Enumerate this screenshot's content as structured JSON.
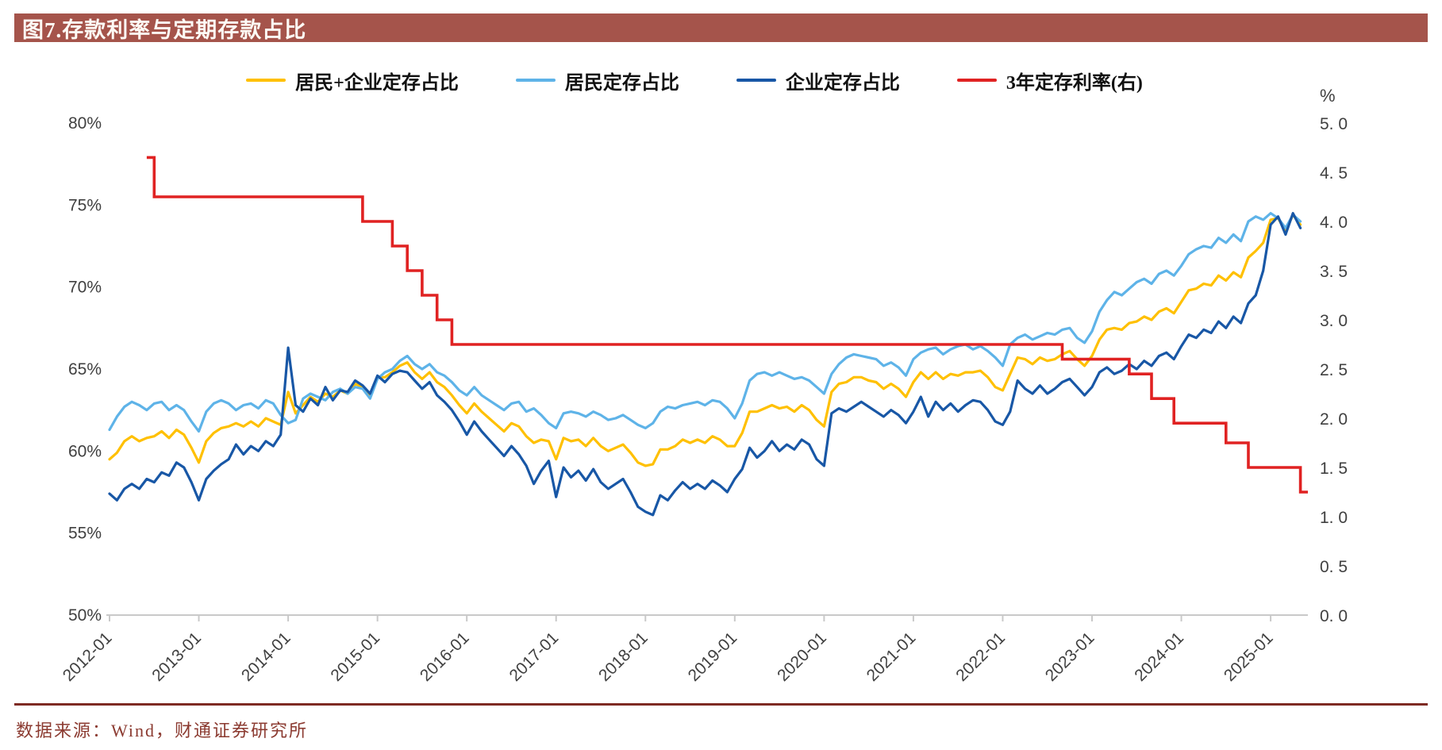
{
  "header": {
    "title": "图7.存款利率与定期存款占比"
  },
  "footer": {
    "source": "数据来源：Wind，财通证券研究所"
  },
  "colors": {
    "title_bar_bg": "#A5544B",
    "title_text": "#FDFAF5",
    "footer_text": "#8B3A30",
    "divider": "#7E2B23",
    "axis_line": "#C9C9C9",
    "axis_text": "#404040",
    "series_total": "#FFC000",
    "series_household": "#5EB3E8",
    "series_corporate": "#1857A6",
    "series_rate": "#E02222"
  },
  "legend": [
    {
      "label": "居民+企业定存占比",
      "color": "#FFC000"
    },
    {
      "label": "居民定存占比",
      "color": "#5EB3E8"
    },
    {
      "label": "企业定存占比",
      "color": "#1857A6"
    },
    {
      "label": "3年定存利率(右)",
      "color": "#E02222"
    }
  ],
  "chart_data": {
    "type": "line",
    "title": "存款利率与定期存款占比",
    "x_unit": "month",
    "x_start": "2012-01",
    "x_end": "2025-05",
    "months_total": 161,
    "x_tick_labels": [
      "2012-01",
      "2013-01",
      "2014-01",
      "2015-01",
      "2016-01",
      "2017-01",
      "2018-01",
      "2019-01",
      "2020-01",
      "2021-01",
      "2022-01",
      "2023-01",
      "2024-01",
      "2025-01"
    ],
    "x_tick_month_index": [
      0,
      12,
      24,
      36,
      48,
      60,
      72,
      84,
      96,
      108,
      120,
      132,
      144,
      156
    ],
    "left_axis": {
      "range": [
        50,
        80
      ],
      "tick_labels": [
        "80%",
        "75%",
        "70%",
        "65%",
        "60%",
        "55%",
        "50%"
      ]
    },
    "right_axis": {
      "unit": "%",
      "range": [
        0,
        5
      ],
      "tick_labels": [
        "5. 0",
        "4. 5",
        "4. 0",
        "3. 5",
        "3. 0",
        "2. 5",
        "2. 0",
        "1. 5",
        "1. 0",
        "0. 5",
        "0. 0"
      ]
    },
    "grid": false,
    "legend_position": "top",
    "series": [
      {
        "name": "居民+企业定存占比",
        "axis": "left",
        "color": "#FFC000",
        "values": [
          59.5,
          59.9,
          60.6,
          60.9,
          60.6,
          60.8,
          60.9,
          61.2,
          60.8,
          61.3,
          61.0,
          60.2,
          59.3,
          60.6,
          61.1,
          61.4,
          61.5,
          61.7,
          61.5,
          61.8,
          61.5,
          62.0,
          61.8,
          61.6,
          63.6,
          62.3,
          62.8,
          63.3,
          63.0,
          63.5,
          63.3,
          63.7,
          63.5,
          64.1,
          63.9,
          63.3,
          64.5,
          64.5,
          64.8,
          65.2,
          65.4,
          64.8,
          64.4,
          64.8,
          64.2,
          63.9,
          63.4,
          62.8,
          62.3,
          62.9,
          62.4,
          62.0,
          61.6,
          61.2,
          61.7,
          61.5,
          60.9,
          60.5,
          60.7,
          60.6,
          59.5,
          60.8,
          60.6,
          60.7,
          60.3,
          60.8,
          60.3,
          60.0,
          60.2,
          60.4,
          59.9,
          59.3,
          59.1,
          59.2,
          60.1,
          60.1,
          60.3,
          60.7,
          60.5,
          60.7,
          60.5,
          60.9,
          60.7,
          60.3,
          60.3,
          61.1,
          62.4,
          62.4,
          62.6,
          62.8,
          62.6,
          62.7,
          62.4,
          62.8,
          62.5,
          61.9,
          61.5,
          63.6,
          64.1,
          64.2,
          64.5,
          64.5,
          64.3,
          64.2,
          63.8,
          64.1,
          63.8,
          63.3,
          64.2,
          64.8,
          64.4,
          64.8,
          64.4,
          64.7,
          64.6,
          64.8,
          64.8,
          64.9,
          64.5,
          63.9,
          63.7,
          64.7,
          65.7,
          65.6,
          65.3,
          65.7,
          65.5,
          65.6,
          65.9,
          66.1,
          65.6,
          65.2,
          65.8,
          66.8,
          67.4,
          67.5,
          67.4,
          67.8,
          67.9,
          68.2,
          68.0,
          68.5,
          68.7,
          68.4,
          69.1,
          69.8,
          69.9,
          70.2,
          70.1,
          70.7,
          70.4,
          70.9,
          70.6,
          71.8,
          72.2,
          72.7,
          74.1,
          74.2,
          73.4,
          74.4,
          73.8
        ]
      },
      {
        "name": "居民定存占比",
        "axis": "left",
        "color": "#5EB3E8",
        "values": [
          61.3,
          62.1,
          62.7,
          63.0,
          62.8,
          62.5,
          62.9,
          63.0,
          62.5,
          62.8,
          62.5,
          61.8,
          61.2,
          62.4,
          62.9,
          63.1,
          62.9,
          62.5,
          62.8,
          62.9,
          62.6,
          63.1,
          62.9,
          62.2,
          61.7,
          61.9,
          63.2,
          63.5,
          63.3,
          63.1,
          63.6,
          63.8,
          63.5,
          63.9,
          63.8,
          63.2,
          64.4,
          64.8,
          65.0,
          65.5,
          65.8,
          65.3,
          65.0,
          65.3,
          64.8,
          64.6,
          64.2,
          63.7,
          63.4,
          63.9,
          63.4,
          63.1,
          62.8,
          62.5,
          62.9,
          63.0,
          62.4,
          62.6,
          62.2,
          61.7,
          61.4,
          62.3,
          62.4,
          62.3,
          62.1,
          62.4,
          62.2,
          61.9,
          62.0,
          62.2,
          61.9,
          61.6,
          61.4,
          61.7,
          62.4,
          62.7,
          62.6,
          62.8,
          62.9,
          63.0,
          62.8,
          63.1,
          63.0,
          62.6,
          62.0,
          62.9,
          64.3,
          64.7,
          64.8,
          64.6,
          64.8,
          64.6,
          64.4,
          64.5,
          64.3,
          63.9,
          63.5,
          64.7,
          65.3,
          65.7,
          65.9,
          65.8,
          65.7,
          65.6,
          65.2,
          65.4,
          65.1,
          64.6,
          65.6,
          66.0,
          66.2,
          66.3,
          65.9,
          66.2,
          66.4,
          66.5,
          66.2,
          66.4,
          66.1,
          65.7,
          65.2,
          66.5,
          66.9,
          67.1,
          66.8,
          67.0,
          67.2,
          67.1,
          67.4,
          67.5,
          66.9,
          66.6,
          67.3,
          68.5,
          69.2,
          69.7,
          69.5,
          69.9,
          70.3,
          70.5,
          70.2,
          70.8,
          71.0,
          70.7,
          71.3,
          72.0,
          72.3,
          72.5,
          72.4,
          73.0,
          72.7,
          73.2,
          72.8,
          74.0,
          74.3,
          74.1,
          74.5,
          74.2,
          73.6,
          74.4,
          74.0
        ]
      },
      {
        "name": "企业定存占比",
        "axis": "left",
        "color": "#1857A6",
        "values": [
          57.4,
          57.0,
          57.7,
          58.0,
          57.7,
          58.3,
          58.1,
          58.7,
          58.5,
          59.3,
          59.0,
          58.1,
          57.0,
          58.3,
          58.8,
          59.2,
          59.5,
          60.4,
          59.8,
          60.3,
          60.0,
          60.6,
          60.3,
          61.0,
          66.3,
          62.8,
          62.4,
          63.2,
          62.8,
          63.9,
          63.1,
          63.7,
          63.6,
          64.3,
          64.0,
          63.5,
          64.6,
          64.2,
          64.7,
          64.9,
          64.8,
          64.3,
          63.8,
          64.2,
          63.4,
          63.0,
          62.5,
          61.8,
          61.0,
          61.8,
          61.2,
          60.7,
          60.2,
          59.7,
          60.3,
          59.8,
          59.1,
          58.0,
          58.8,
          59.4,
          57.2,
          59.0,
          58.4,
          58.8,
          58.2,
          58.9,
          58.1,
          57.7,
          58.0,
          58.3,
          57.5,
          56.6,
          56.3,
          56.1,
          57.3,
          57.0,
          57.6,
          58.1,
          57.7,
          58.0,
          57.7,
          58.2,
          57.9,
          57.5,
          58.3,
          58.9,
          60.2,
          59.6,
          60.0,
          60.6,
          60.0,
          60.4,
          60.1,
          60.7,
          60.4,
          59.5,
          59.1,
          62.3,
          62.6,
          62.4,
          62.7,
          63.0,
          62.7,
          62.4,
          62.1,
          62.5,
          62.2,
          61.7,
          62.4,
          63.3,
          62.1,
          63.0,
          62.5,
          62.9,
          62.4,
          62.8,
          63.1,
          63.0,
          62.5,
          61.8,
          61.6,
          62.4,
          64.3,
          63.8,
          63.5,
          64.0,
          63.5,
          63.8,
          64.2,
          64.4,
          63.9,
          63.4,
          63.9,
          64.8,
          65.1,
          64.7,
          64.9,
          65.3,
          65.0,
          65.5,
          65.2,
          65.8,
          66.0,
          65.6,
          66.4,
          67.1,
          66.9,
          67.4,
          67.2,
          67.9,
          67.5,
          68.2,
          67.8,
          69.0,
          69.5,
          71.0,
          73.8,
          74.3,
          73.2,
          74.5,
          73.6
        ]
      },
      {
        "name": "3年定存利率(右)",
        "axis": "right",
        "color": "#E02222",
        "style": "step",
        "segments": [
          [
            5,
            6,
            4.65
          ],
          [
            6,
            34,
            4.25
          ],
          [
            34,
            38,
            4.0
          ],
          [
            38,
            40,
            3.75
          ],
          [
            40,
            42,
            3.5
          ],
          [
            42,
            44,
            3.25
          ],
          [
            44,
            46,
            3.0
          ],
          [
            46,
            128,
            2.75
          ],
          [
            128,
            137,
            2.6
          ],
          [
            137,
            140,
            2.45
          ],
          [
            140,
            143,
            2.2
          ],
          [
            143,
            150,
            1.95
          ],
          [
            150,
            153,
            1.75
          ],
          [
            153,
            160,
            1.5
          ],
          [
            160,
            161,
            1.25
          ]
        ]
      }
    ]
  }
}
